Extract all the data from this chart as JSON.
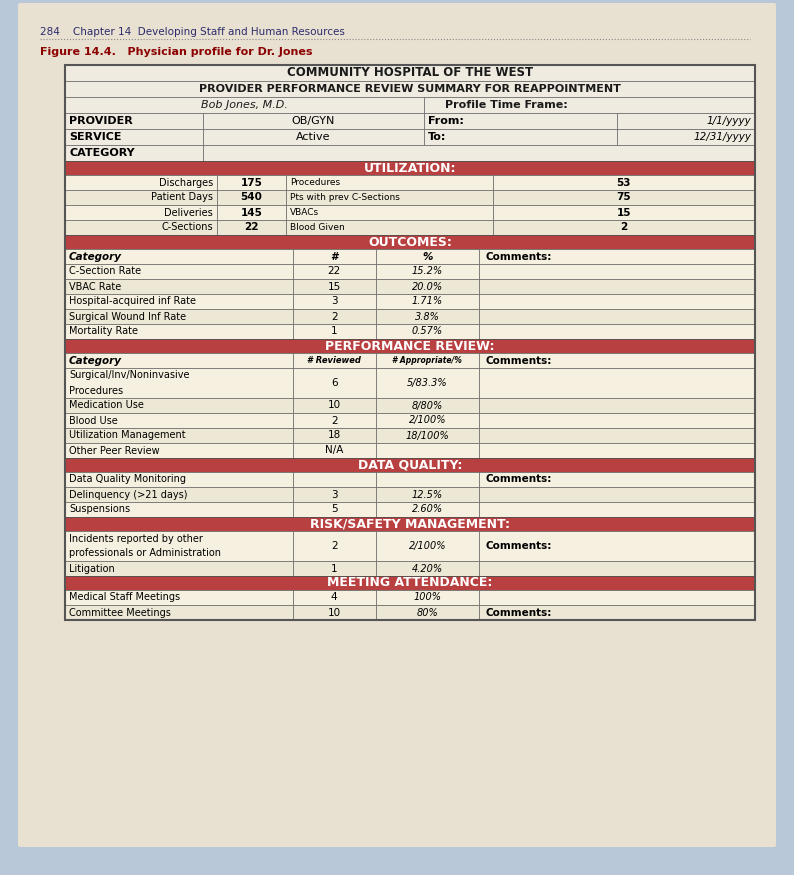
{
  "page_header": "284    Chapter 14  Developing Staff and Human Resources",
  "figure_label": "Figure 14.4.   Physician profile for Dr. Jones",
  "title1": "COMMUNITY HOSPITAL OF THE WEST",
  "title2": "PROVIDER PERFORMANCE REVIEW SUMMARY FOR REAPPOINTMENT",
  "provider_name": "Bob Jones, M.D.",
  "provider_label": "PROVIDER",
  "provider_value": "OB/GYN",
  "service_label": "SERVICE",
  "service_value": "Active",
  "category_label": "CATEGORY",
  "profile_label": "Profile Time Frame:",
  "from_label": "From:",
  "from_value": "1/1/yyyy",
  "to_label": "To:",
  "to_value": "12/31/yyyy",
  "section_utilization": "UTILIZATION:",
  "util_left": [
    [
      "Discharges",
      "175"
    ],
    [
      "Patient Days",
      "540"
    ],
    [
      "Deliveries",
      "145"
    ],
    [
      "C-Sections",
      "22"
    ]
  ],
  "util_right": [
    [
      "Procedures",
      "53"
    ],
    [
      "Pts with prev C-Sections",
      "75"
    ],
    [
      "VBACs",
      "15"
    ],
    [
      "Blood Given",
      "2"
    ]
  ],
  "section_outcomes": "OUTCOMES:",
  "outcomes_rows": [
    [
      "C-Section Rate",
      "22",
      "15.2%"
    ],
    [
      "VBAC Rate",
      "15",
      "20.0%"
    ],
    [
      "Hospital-acquired inf Rate",
      "3",
      "1.71%"
    ],
    [
      "Surgical Wound Inf Rate",
      "2",
      "3.8%"
    ],
    [
      "Mortality Rate",
      "1",
      "0.57%"
    ]
  ],
  "section_performance": "PERFORMANCE REVIEW:",
  "perf_rows": [
    [
      "Surgical/Inv/Noninvasive\nProcedures",
      "6",
      "5/83.3%"
    ],
    [
      "Medication Use",
      "10",
      "8/80%"
    ],
    [
      "Blood Use",
      "2",
      "2/100%"
    ],
    [
      "Utilization Management",
      "18",
      "18/100%"
    ],
    [
      "Other Peer Review",
      "N/A",
      ""
    ]
  ],
  "section_data_quality": "DATA QUALITY:",
  "dq_rows": [
    [
      "Data Quality Monitoring",
      "",
      "",
      "Comments:"
    ],
    [
      "Delinquency (>21 days)",
      "3",
      "12.5%",
      ""
    ],
    [
      "Suspensions",
      "5",
      "2.60%",
      ""
    ]
  ],
  "section_risk": "RISK/SAFETY MANAGEMENT:",
  "risk_rows": [
    [
      "Incidents reported by other\nprofessionals or Administration",
      "2",
      "2/100%",
      "Comments:"
    ],
    [
      "Litigation",
      "1",
      "4.20%",
      ""
    ]
  ],
  "section_meeting": "MEETING ATTENDANCE:",
  "meeting_rows": [
    [
      "Medical Staff Meetings",
      "4",
      "100%",
      ""
    ],
    [
      "Committee Meetings",
      "10",
      "80%",
      "Comments:"
    ]
  ],
  "header_bg": "#b94040",
  "row_bg_light": "#f5f0e0",
  "row_bg_alt": "#ede8d5",
  "title_bg": "#f0ebe0"
}
